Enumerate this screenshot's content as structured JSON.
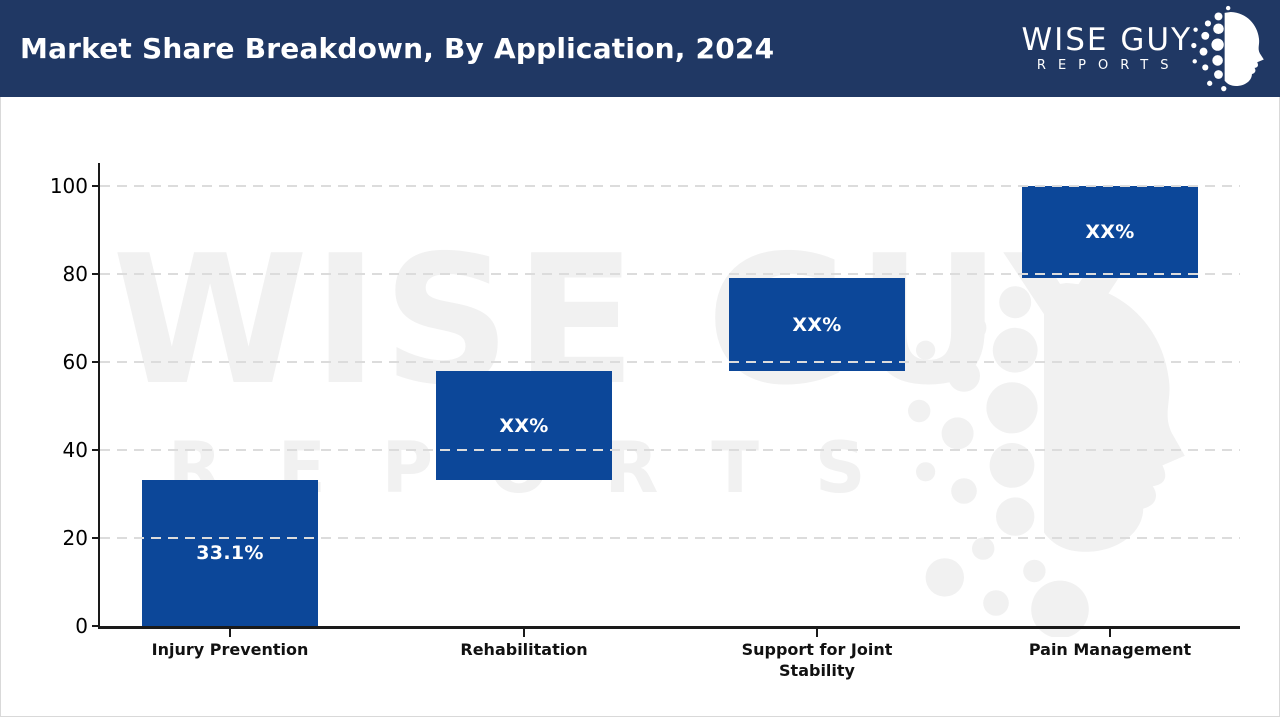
{
  "header": {
    "title": "Market Share Breakdown, By Application, 2024",
    "logo": {
      "line1": "WISE GUY",
      "line2": "REPORTS"
    }
  },
  "watermark": {
    "line1": "WISE GUY",
    "line2": "REPORTS"
  },
  "chart_data": {
    "type": "bar",
    "subtype": "waterfall",
    "title": "Market Share Breakdown, By Application, 2024",
    "categories": [
      "Injury Prevention",
      "Rehabilitation",
      "Support for Joint Stability",
      "Pain Management"
    ],
    "segments": [
      {
        "category": "Injury Prevention",
        "start": 0,
        "end": 33.1,
        "label": "33.1%"
      },
      {
        "category": "Rehabilitation",
        "start": 33.1,
        "end": 58,
        "label": "XX%"
      },
      {
        "category": "Support for Joint Stability",
        "start": 58,
        "end": 79,
        "label": "XX%"
      },
      {
        "category": "Pain Management",
        "start": 79,
        "end": 100,
        "label": "XX%"
      }
    ],
    "xlabel": "",
    "ylabel": "",
    "ylim": [
      0,
      100
    ],
    "yticks": [
      0,
      20,
      40,
      60,
      80,
      100
    ],
    "grid": "horizontal-dashed",
    "legend": "none",
    "bar_color": "#0c4799",
    "bar_label_color": "#ffffff"
  },
  "colors": {
    "header_bg": "#203864",
    "bar": "#0c4799",
    "grid": "#dcdcdc",
    "axis": "#1a1a1a",
    "watermark": "#f1f1f1"
  }
}
